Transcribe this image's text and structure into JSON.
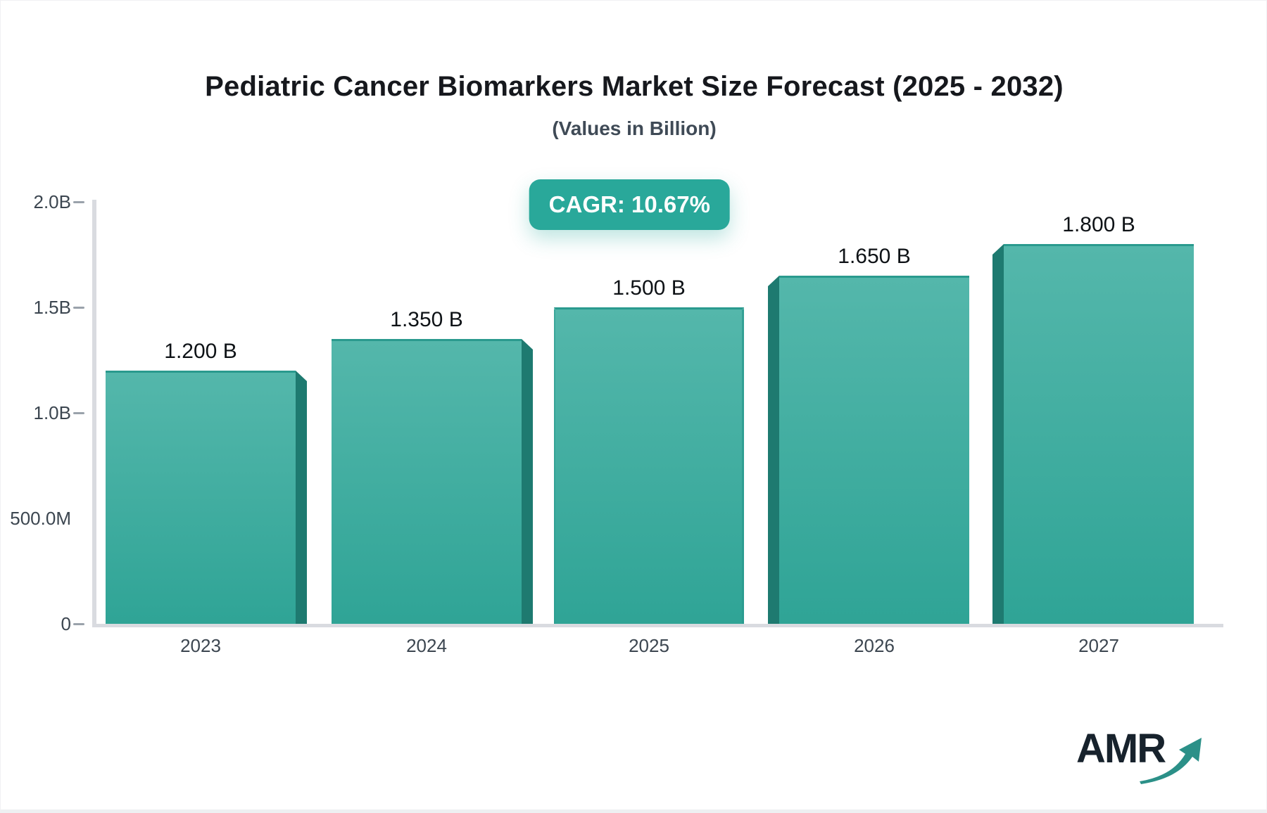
{
  "page": {
    "title": "Pediatric Cancer Biomarkers Market Size Forecast (2025 - 2032)",
    "subtitle": "(Values in Billion)",
    "badge": "CAGR: 10.67%",
    "logo_text": "AMR"
  },
  "colors": {
    "bar_top": "#54b7ab",
    "bar_bottom": "#2fa496",
    "bar_side": "#1e7a70",
    "bar_border": "#2a9a8e",
    "badge_bg": "#29a89a",
    "axis_line": "#d9dbe0",
    "tick": "#9aa2ab",
    "label": "#3c4650",
    "value_label": "#0e1216",
    "logo": "#17222c",
    "logo_arrow": "#2b9088"
  },
  "chart_data": {
    "type": "bar",
    "title": "Pediatric Cancer Biomarkers Market Size Forecast (2025 - 2032)",
    "subtitle": "(Values in Billion)",
    "cagr_label": "CAGR: 10.67%",
    "categories": [
      "2023",
      "2024",
      "2025",
      "2026",
      "2027"
    ],
    "values": [
      1.2,
      1.35,
      1.5,
      1.65,
      1.8
    ],
    "value_labels": [
      "1.200 B",
      "1.350 B",
      "1.500 B",
      "1.650 B",
      "1.800 B"
    ],
    "xlabel": "",
    "ylabel": "",
    "ylim": [
      0,
      2.0
    ],
    "yticks": [
      {
        "label": "2.0B",
        "value": 2.0,
        "dash": true
      },
      {
        "label": "1.5B",
        "value": 1.5,
        "dash": true
      },
      {
        "label": "1.0B",
        "value": 1.0,
        "dash": true
      },
      {
        "label": "500.0M",
        "value": 0.5,
        "dash": false
      },
      {
        "label": "0",
        "value": 0.0,
        "dash": true
      }
    ],
    "grid": false,
    "legend": false
  }
}
